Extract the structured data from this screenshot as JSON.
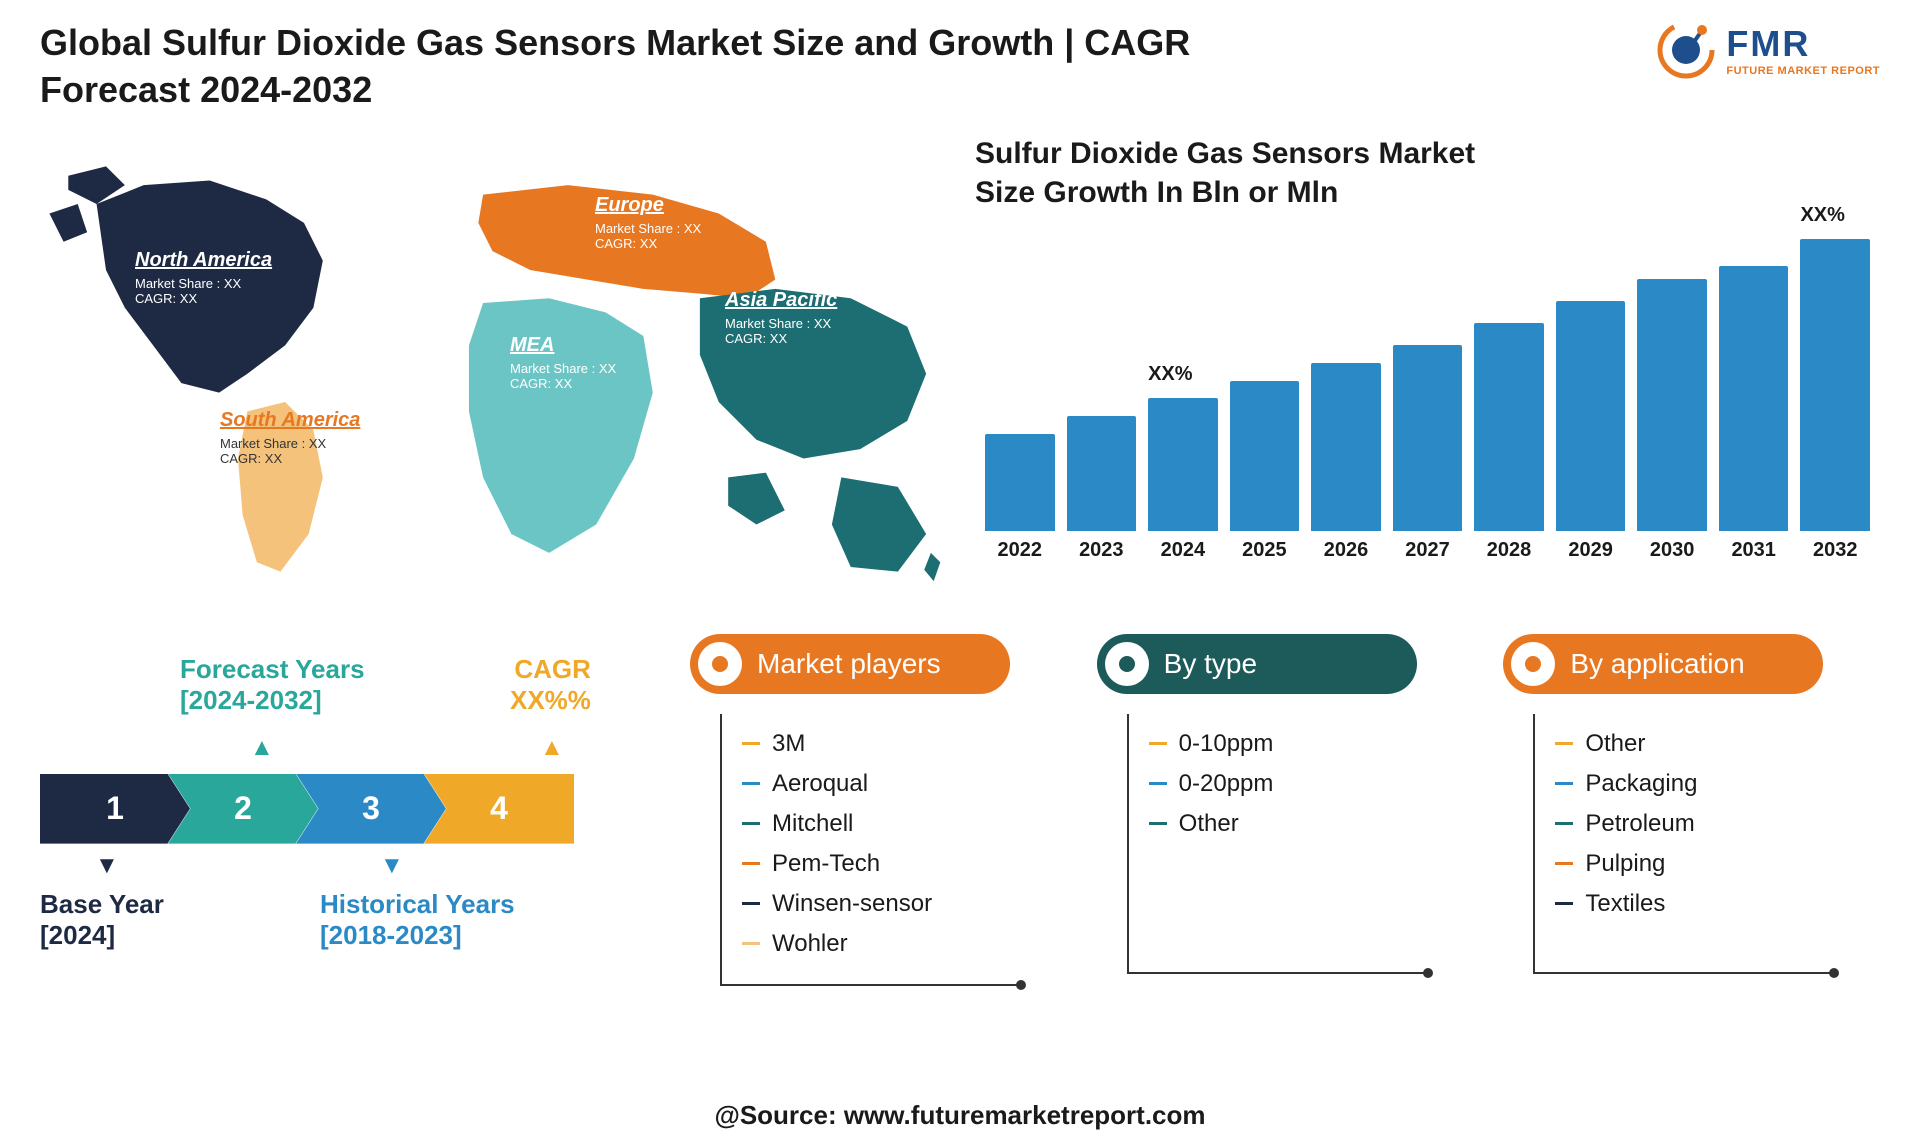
{
  "title": "Global Sulfur Dioxide Gas Sensors Market Size and Growth | CAGR Forecast 2024-2032",
  "logo": {
    "main": "FMR",
    "sub": "FUTURE MARKET REPORT",
    "icon_color_primary": "#e87722",
    "icon_color_secondary": "#1e4e8c"
  },
  "map": {
    "regions": [
      {
        "name": "North America",
        "share": "Market Share : XX",
        "cagr": "CAGR: XX",
        "color": "#1e2a44",
        "label_color": "#ffffff"
      },
      {
        "name": "South America",
        "share": "Market Share : XX",
        "cagr": "CAGR: XX",
        "color": "#f4c27a",
        "label_color": "#e87722"
      },
      {
        "name": "Europe",
        "share": "Market Share : XX",
        "cagr": "CAGR: XX",
        "color": "#e87722",
        "label_color": "#ffffff"
      },
      {
        "name": "MEA",
        "share": "Market Share : XX",
        "cagr": "CAGR: XX",
        "color": "#6cc5c5",
        "label_color": "#ffffff"
      },
      {
        "name": "Asia Pacific",
        "share": "Market Share : XX",
        "cagr": "CAGR: XX",
        "color": "#1d6e73",
        "label_color": "#ffffff"
      }
    ]
  },
  "barchart": {
    "type": "bar",
    "title": "Sulfur Dioxide Gas Sensors Market Size Growth In Bln or Mln",
    "categories": [
      "2022",
      "2023",
      "2024",
      "2025",
      "2026",
      "2027",
      "2028",
      "2029",
      "2030",
      "2031",
      "2032"
    ],
    "values": [
      110,
      130,
      150,
      170,
      190,
      210,
      235,
      260,
      285,
      300,
      330
    ],
    "ylim": [
      0,
      340
    ],
    "bar_color": "#2b8ac6",
    "bar_width": 0.85,
    "background_color": "#ffffff",
    "label_fontsize": 20,
    "annotations": [
      {
        "index": 2,
        "text": "XX%"
      },
      {
        "index": 10,
        "text": "XX%"
      }
    ]
  },
  "timeline": {
    "items": [
      {
        "num": "1",
        "color": "#1e2a44",
        "label": "Base Year",
        "sub": "[2024]",
        "label_color": "#1e2a44",
        "pos": "below"
      },
      {
        "num": "2",
        "color": "#2aa79b",
        "label": "Forecast Years",
        "sub": "[2024-2032]",
        "label_color": "#2aa79b",
        "pos": "above"
      },
      {
        "num": "3",
        "color": "#2b8ac6",
        "label": "Historical Years",
        "sub": "[2018-2023]",
        "label_color": "#2b8ac6",
        "pos": "below"
      },
      {
        "num": "4",
        "color": "#f0a828",
        "label": "CAGR",
        "sub": "XX%%",
        "label_color": "#f0a828",
        "pos": "above"
      }
    ]
  },
  "categories": [
    {
      "title": "Market players",
      "header_color": "#e87722",
      "dot_color": "#e87722",
      "items": [
        {
          "label": "3M",
          "tick_color": "#f0a828"
        },
        {
          "label": "Aeroqual",
          "tick_color": "#2b8ac6"
        },
        {
          "label": "Mitchell",
          "tick_color": "#1d6e73"
        },
        {
          "label": "Pem-Tech",
          "tick_color": "#e87722"
        },
        {
          "label": "Winsen-sensor",
          "tick_color": "#1e2a44"
        },
        {
          "label": "Wohler",
          "tick_color": "#f4c27a"
        }
      ]
    },
    {
      "title": "By type",
      "header_color": "#1d5a5a",
      "dot_color": "#1d5a5a",
      "items": [
        {
          "label": "0-10ppm",
          "tick_color": "#f0a828"
        },
        {
          "label": "0-20ppm",
          "tick_color": "#2b8ac6"
        },
        {
          "label": "Other",
          "tick_color": "#1d6e73"
        }
      ]
    },
    {
      "title": "By application",
      "header_color": "#e87722",
      "dot_color": "#e87722",
      "items": [
        {
          "label": "Other",
          "tick_color": "#f0a828"
        },
        {
          "label": "Packaging",
          "tick_color": "#2b8ac6"
        },
        {
          "label": "Petroleum",
          "tick_color": "#1d6e73"
        },
        {
          "label": "Pulping",
          "tick_color": "#e87722"
        },
        {
          "label": "Textiles",
          "tick_color": "#1e2a44"
        }
      ]
    }
  ],
  "footer": "@Source: www.futuremarketreport.com"
}
